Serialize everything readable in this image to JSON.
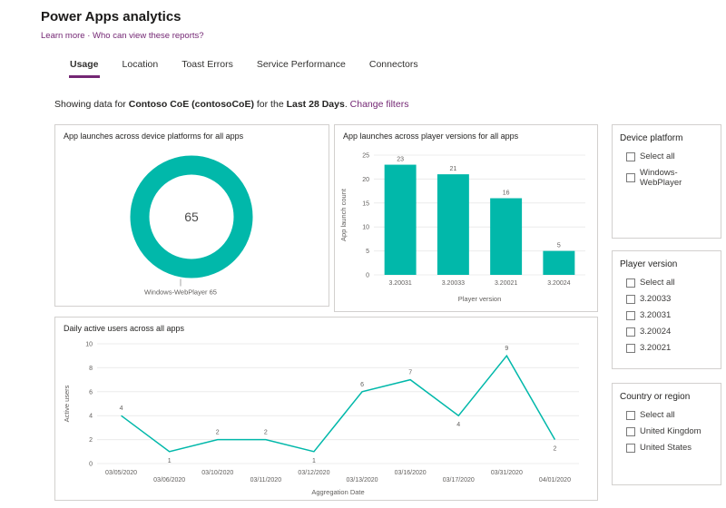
{
  "header": {
    "title": "Power Apps analytics",
    "learn_more": "Learn more",
    "separator": " · ",
    "who_can_view": "Who can view these reports?"
  },
  "tabs": [
    {
      "label": "Usage",
      "active": true
    },
    {
      "label": "Location",
      "active": false
    },
    {
      "label": "Toast Errors",
      "active": false
    },
    {
      "label": "Service Performance",
      "active": false
    },
    {
      "label": "Connectors",
      "active": false
    }
  ],
  "filter_summary": {
    "prefix": "Showing data for",
    "environment": "Contoso CoE (contosoCoE)",
    "middle": "for the",
    "range": "Last 28 Days",
    "period": ".",
    "change_filters": "Change filters"
  },
  "colors": {
    "accent": "#01B8AA",
    "link": "#742774"
  },
  "chart_data": [
    {
      "type": "pie",
      "title": "App launches across device platforms for all apps",
      "center_total": "65",
      "slices": [
        {
          "label": "Windows-WebPlayer",
          "value": 65
        }
      ],
      "legend_position": "bottom"
    },
    {
      "type": "bar",
      "title": "App launches across player versions for all apps",
      "categories": [
        "3.20031",
        "3.20033",
        "3.20021",
        "3.20024"
      ],
      "values": [
        23,
        21,
        16,
        5
      ],
      "xlabel": "Player version",
      "ylabel": "App launch count",
      "ylim": [
        0,
        25
      ],
      "yticks": [
        0,
        5,
        10,
        15,
        20,
        25
      ],
      "grid": true
    },
    {
      "type": "line",
      "title": "Daily active users across all apps",
      "categories": [
        "03/05/2020",
        "03/06/2020",
        "03/10/2020",
        "03/11/2020",
        "03/12/2020",
        "03/13/2020",
        "03/16/2020",
        "03/17/2020",
        "03/31/2020",
        "04/01/2020"
      ],
      "values": [
        4,
        1,
        2,
        2,
        1,
        6,
        7,
        4,
        9,
        2
      ],
      "xlabel": "Aggregation Date",
      "ylabel": "Active users",
      "ylim": [
        0,
        10
      ],
      "yticks": [
        0,
        2,
        4,
        6,
        8,
        10
      ],
      "grid": true
    }
  ],
  "filters": [
    {
      "title": "Device platform",
      "options": [
        "Select all",
        "Windows-WebPlayer"
      ]
    },
    {
      "title": "Player version",
      "options": [
        "Select all",
        "3.20033",
        "3.20031",
        "3.20024",
        "3.20021"
      ]
    },
    {
      "title": "Country or region",
      "options": [
        "Select all",
        "United Kingdom",
        "United States"
      ]
    }
  ]
}
